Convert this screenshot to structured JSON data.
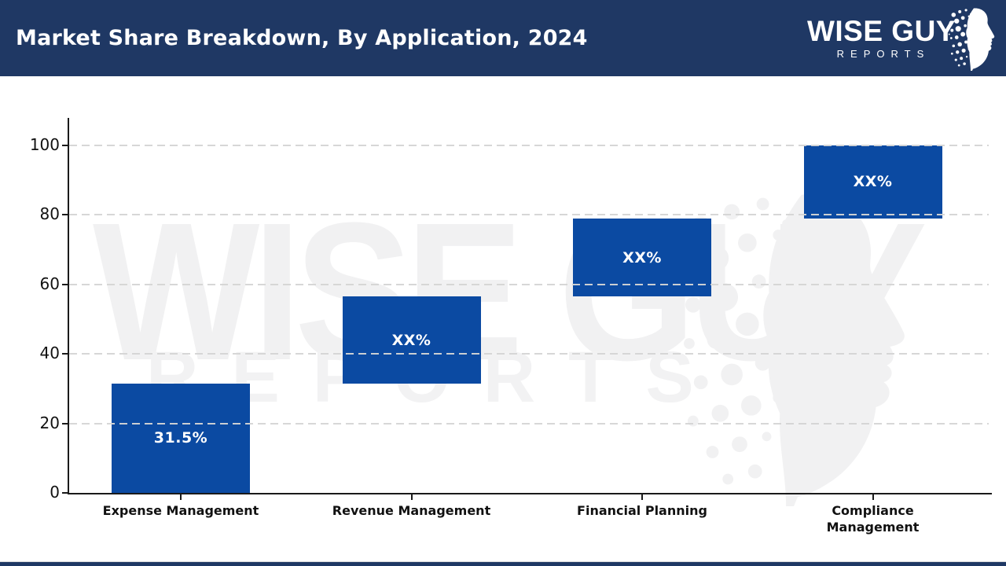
{
  "header": {
    "title": "Market Share Breakdown, By Application, 2024",
    "logo": {
      "wordmark": "WISE GUY",
      "subtext": "REPORTS"
    }
  },
  "watermark": {
    "wordmark": "WISE GUY",
    "subtext": "REPORTS"
  },
  "chart_data": {
    "type": "bar",
    "subtype": "waterfall",
    "title": "Market Share Breakdown, By Application, 2024",
    "categories": [
      "Expense Management",
      "Revenue Management",
      "Financial Planning",
      "Compliance Management"
    ],
    "segments": [
      {
        "category": "Expense Management",
        "start": 0,
        "end": 31.5,
        "label": "31.5%"
      },
      {
        "category": "Revenue Management",
        "start": 31.5,
        "end": 56.5,
        "label": "XX%"
      },
      {
        "category": "Financial Planning",
        "start": 56.5,
        "end": 79,
        "label": "XX%"
      },
      {
        "category": "Compliance Management",
        "start": 79,
        "end": 100,
        "label": "XX%"
      }
    ],
    "xlabel": "",
    "ylabel": "",
    "yticks": [
      0,
      20,
      40,
      60,
      80,
      100
    ],
    "ylim": [
      0,
      100
    ],
    "grid": "horizontal-dashed",
    "legend": "none",
    "bar_color": "#0b4aa2",
    "bar_label_color": "#ffffff",
    "axis_color": "#1a1a1a",
    "grid_color": "#d9d9d9",
    "header_color": "#1f3864",
    "watermark_color": "#f1f1f2"
  }
}
